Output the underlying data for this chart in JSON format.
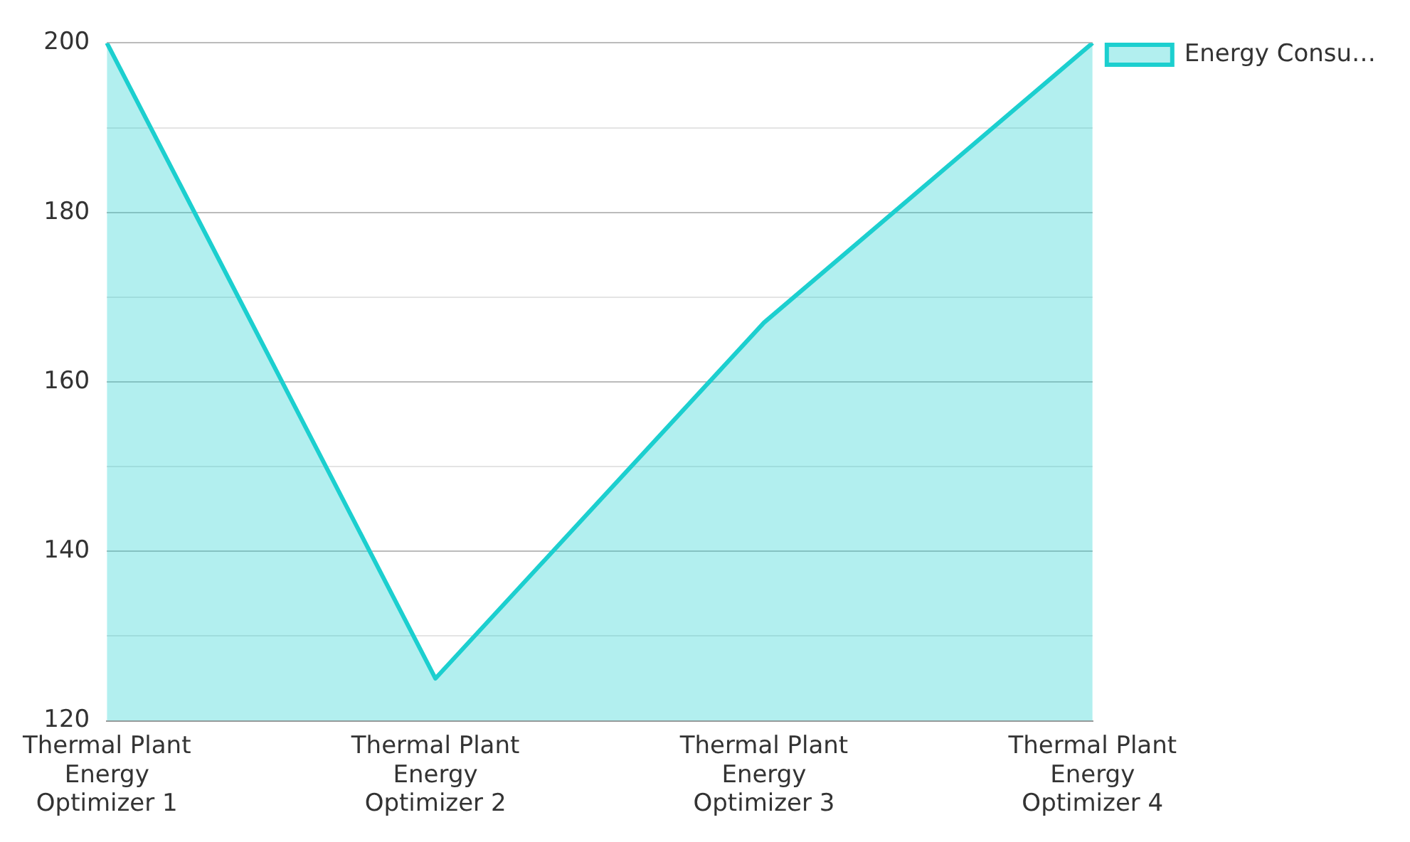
{
  "chart_data": {
    "type": "area",
    "categories": [
      "Thermal Plant Energy Optimizer 1",
      "Thermal Plant Energy Optimizer 2",
      "Thermal Plant Energy Optimizer 3",
      "Thermal Plant Energy Optimizer 4"
    ],
    "series": [
      {
        "name": "Energy Consu…",
        "color": "#1ccfcf",
        "values": [
          200,
          125,
          167,
          200
        ]
      }
    ],
    "ylim": [
      120,
      200
    ],
    "yticks": [
      120,
      {
        "value": 130,
        "label": null
      },
      140,
      {
        "value": 150,
        "label": null
      },
      160,
      {
        "value": 170,
        "label": null
      },
      180,
      {
        "value": 190,
        "label": null
      },
      200
    ],
    "grid": "y",
    "legend": "top right",
    "marker": "none",
    "line_style": "solid"
  }
}
